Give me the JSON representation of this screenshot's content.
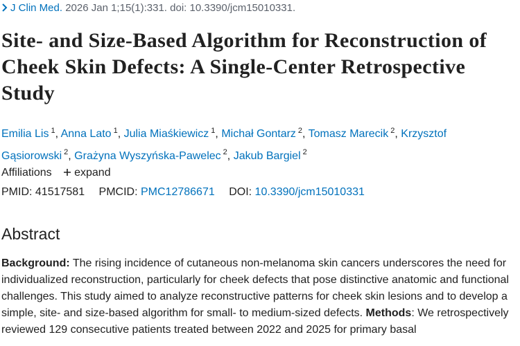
{
  "citation": {
    "journal": "J Clin Med.",
    "details": " 2026 Jan 1;15(1):331. doi: 10.3390/jcm15010331."
  },
  "title": "Site- and Size-Based Algorithm for Reconstruction of Cheek Skin Defects: A Single-Center Retrospective Study",
  "authors": {
    "separator": ",",
    "list": [
      {
        "name": "Emilia Lis",
        "aff": "1"
      },
      {
        "name": "Anna Lato",
        "aff": "1"
      },
      {
        "name": "Julia Miaśkiewicz",
        "aff": "1"
      },
      {
        "name": "Michał Gontarz",
        "aff": "2"
      },
      {
        "name": "Tomasz Marecik",
        "aff": "2"
      },
      {
        "name": "Krzysztof Gąsiorowski",
        "aff": "2"
      },
      {
        "name": "Grażyna Wyszyńska-Pawelec",
        "aff": "2"
      },
      {
        "name": "Jakub Bargiel",
        "aff": "2"
      }
    ]
  },
  "affiliations": {
    "label": "Affiliations",
    "toggle": "expand"
  },
  "identifiers": {
    "pmid_label": "PMID:",
    "pmid": "41517581",
    "pmcid_label": "PMCID:",
    "pmcid": "PMC12786671",
    "doi_label": "DOI:",
    "doi": "10.3390/jcm15010331"
  },
  "abstract": {
    "heading": "Abstract",
    "background_label": "Background:",
    "background_text": " The rising incidence of cutaneous non-melanoma skin cancers underscores the need for individualized reconstruction, particularly for cheek defects that pose distinctive anatomic and functional challenges. This study aimed to analyze reconstructive patterns for cheek skin lesions and to develop a simple, site- and size-based algorithm for small- to medium-sized defects.",
    "methods_label": "Methods",
    "methods_text": ": We retrospectively reviewed 129 consecutive patients treated between 2022 and 2025 for primary basal"
  }
}
